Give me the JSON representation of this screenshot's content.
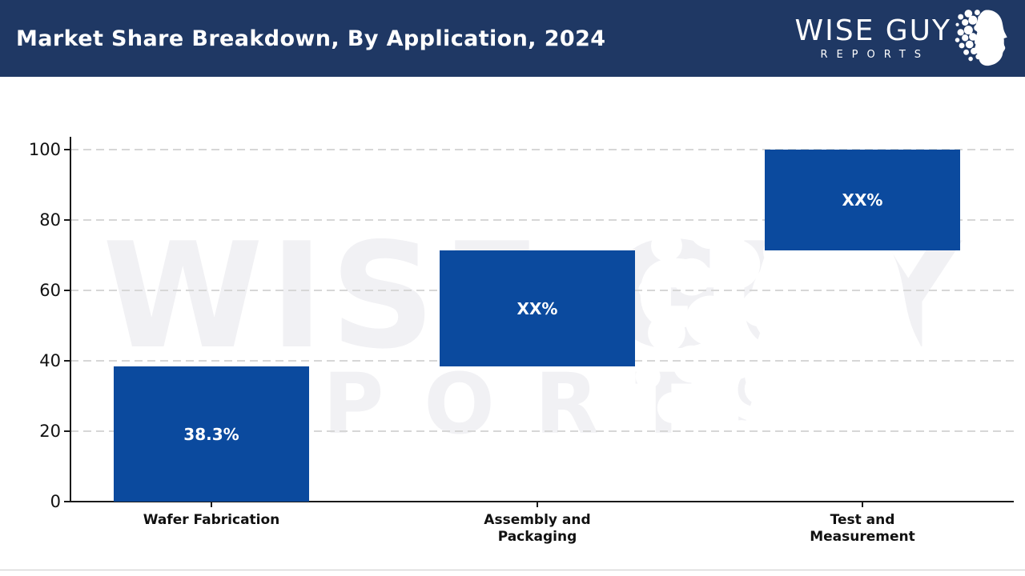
{
  "header": {
    "title": "Market Share Breakdown, By Application, 2024",
    "bg_color": "#1f3864",
    "logo": {
      "line1": "WISE GUY",
      "line2": "REPORTS"
    }
  },
  "watermark": {
    "line1": "WISE GUY",
    "line2": "REPORTS"
  },
  "chart_data": {
    "type": "bar",
    "subtype": "floating-waterfall",
    "title": "Market Share Breakdown, By Application, 2024",
    "categories": [
      "Wafer Fabrication",
      "Assembly and Packaging",
      "Test and Measurement"
    ],
    "category_lines": [
      [
        "Wafer Fabrication"
      ],
      [
        "Assembly and",
        "Packaging"
      ],
      [
        "Test and",
        "Measurement"
      ]
    ],
    "segments": [
      {
        "category": "Wafer Fabrication",
        "start": 0,
        "end": 38.3,
        "label": "38.3%"
      },
      {
        "category": "Assembly and Packaging",
        "start": 38.3,
        "end": 71.3,
        "label": "XX%"
      },
      {
        "category": "Test and Measurement",
        "start": 71.3,
        "end": 100,
        "label": "XX%"
      }
    ],
    "ylim": [
      0,
      100
    ],
    "yticks": [
      0,
      20,
      40,
      60,
      80,
      100
    ],
    "xlabel": "",
    "ylabel": "",
    "grid": "horizontal-dashed",
    "legend": "none",
    "bar_color": "#0b4a9e",
    "bar_label_color": "#ffffff",
    "axis_color": "#1a1a1a",
    "gridline_color": "#d7d7d7"
  }
}
